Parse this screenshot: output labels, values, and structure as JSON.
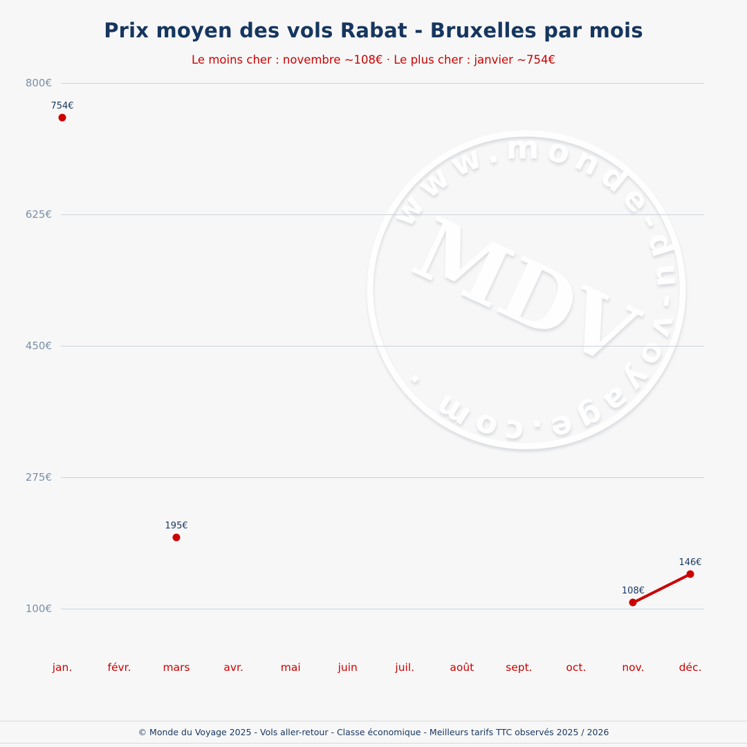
{
  "colors": {
    "bg": "#f7f7f7",
    "navy": "#16365f",
    "red": "#cc0000",
    "grid": "#c9d2dc",
    "ytick": "#7a90a7",
    "line": "#d8d8d8",
    "watermark": "#ffffff"
  },
  "header": {
    "title": "Prix moyen des vols Rabat - Bruxelles par mois",
    "subtitle": "Le moins cher : novembre ~108€ · Le plus cher : janvier ~754€"
  },
  "chart_data": {
    "type": "line",
    "title": "Prix moyen des vols Rabat - Bruxelles par mois",
    "categories": [
      "jan.",
      "févr.",
      "mars",
      "avr.",
      "mai",
      "juin",
      "juil.",
      "août",
      "sept.",
      "oct.",
      "nov.",
      "déc."
    ],
    "values": [
      754,
      null,
      195,
      null,
      null,
      null,
      null,
      null,
      null,
      null,
      108,
      146
    ],
    "point_labels": [
      "754€",
      null,
      "195€",
      null,
      null,
      null,
      null,
      null,
      null,
      null,
      "108€",
      "146€"
    ],
    "yticks": [
      {
        "value": 800,
        "label": "800€"
      },
      {
        "value": 625,
        "label": "625€"
      },
      {
        "value": 450,
        "label": "450€"
      },
      {
        "value": 275,
        "label": "275€"
      },
      {
        "value": 100,
        "label": "100€"
      }
    ],
    "ylim": [
      100,
      800
    ],
    "grid": true,
    "legend": "none",
    "cheapest": {
      "month": "novembre",
      "price": 108
    },
    "most_expensive": {
      "month": "janvier",
      "price": 754
    }
  },
  "watermark": {
    "ring_text": "www.monde-du-voyage.com ·",
    "center_text": "MDV"
  },
  "footer": {
    "text": "© Monde du Voyage 2025 - Vols aller-retour - Classe économique - Meilleurs tarifs TTC observés 2025 / 2026"
  }
}
